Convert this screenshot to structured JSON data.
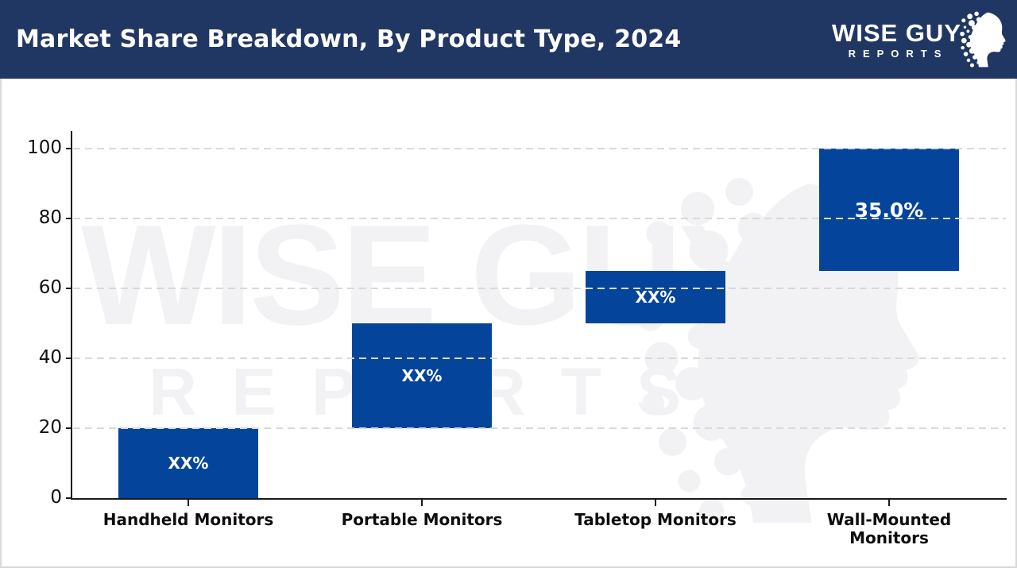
{
  "header": {
    "title": "Market Share Breakdown, By Product Type, 2024",
    "logo": {
      "name_top": "WISE GUY",
      "name_bottom": "REPORTS"
    }
  },
  "watermark": {
    "text_top": "WISE GUY",
    "text_bottom": "REPORTS"
  },
  "colors": {
    "header_bg": "#213763",
    "title_text": "#ffffff",
    "bar": "#04449b",
    "bar_label": "#ffffff",
    "grid": "#d9d9d9",
    "axis": "#1a1a1a",
    "watermark": "#f2f2f4",
    "frame_border": "#d9d9d9"
  },
  "chart_data": {
    "type": "bar",
    "subtype": "waterfall",
    "title": "Market Share Breakdown, By Product Type, 2024",
    "xlabel": "",
    "ylabel": "",
    "ylim": [
      0,
      100
    ],
    "yticks": [
      0,
      20,
      40,
      60,
      80,
      100
    ],
    "grid": "horizontal-dashed",
    "legend": "none",
    "bar_color": "#04449b",
    "categories": [
      "Handheld Monitors",
      "Portable Monitors",
      "Tabletop Monitors",
      "Wall-Mounted Monitors"
    ],
    "segments": [
      {
        "category": "Handheld Monitors",
        "start": 0,
        "end": 20,
        "label": "XX%",
        "emphasized": false
      },
      {
        "category": "Portable Monitors",
        "start": 20,
        "end": 50,
        "label": "XX%",
        "emphasized": false
      },
      {
        "category": "Tabletop Monitors",
        "start": 50,
        "end": 65,
        "label": "XX%",
        "emphasized": false
      },
      {
        "category": "Wall-Mounted Monitors",
        "start": 65,
        "end": 100,
        "label": "35.0%",
        "emphasized": true
      }
    ]
  }
}
